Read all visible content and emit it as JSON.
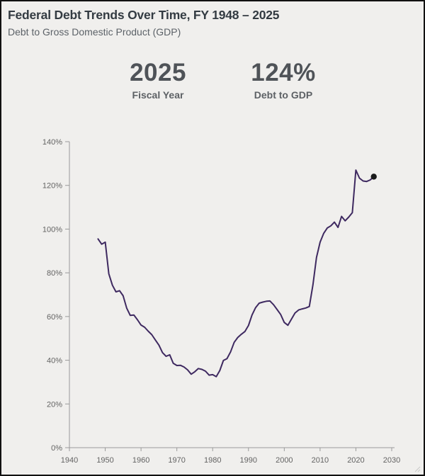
{
  "window": {
    "background_color": "#f0efed",
    "border_color": "#111111"
  },
  "header": {
    "title": "Federal Debt Trends Over Time, FY 1948 – 2025",
    "subtitle": "Debt to Gross Domestic Product (GDP)"
  },
  "stats": {
    "fiscal_year": {
      "value": "2025",
      "label": "Fiscal Year"
    },
    "debt_to_gdp": {
      "value": "124%",
      "label": "Debt to GDP"
    }
  },
  "chart_data": {
    "type": "line",
    "title": "",
    "xlabel": "",
    "ylabel": "",
    "xlim": [
      1940,
      2030
    ],
    "ylim_percent": [
      0,
      140
    ],
    "x_ticks": [
      1940,
      1950,
      1960,
      1970,
      1980,
      1990,
      2000,
      2010,
      2020,
      2030
    ],
    "y_ticks_percent": [
      0,
      20,
      40,
      60,
      80,
      100,
      120,
      140
    ],
    "y_tick_suffix": "%",
    "grid": false,
    "legend": "none",
    "line_color": "#3e2960",
    "axis_color": "#9a9a9a",
    "tick_label_color": "#636363",
    "end_marker": {
      "year": 2025,
      "value_percent": 124,
      "color": "#1a1a1a"
    },
    "series": [
      {
        "name": "Debt to GDP",
        "years": [
          1948,
          1949,
          1950,
          1951,
          1952,
          1953,
          1954,
          1955,
          1956,
          1957,
          1958,
          1959,
          1960,
          1961,
          1962,
          1963,
          1964,
          1965,
          1966,
          1967,
          1968,
          1969,
          1970,
          1971,
          1972,
          1973,
          1974,
          1975,
          1976,
          1977,
          1978,
          1979,
          1980,
          1981,
          1982,
          1983,
          1984,
          1985,
          1986,
          1987,
          1988,
          1989,
          1990,
          1991,
          1992,
          1993,
          1994,
          1995,
          1996,
          1997,
          1998,
          1999,
          2000,
          2001,
          2002,
          2003,
          2004,
          2005,
          2006,
          2007,
          2008,
          2009,
          2010,
          2011,
          2012,
          2013,
          2014,
          2015,
          2016,
          2017,
          2018,
          2019,
          2020,
          2021,
          2022,
          2023,
          2024,
          2025
        ],
        "values_percent": [
          95.5,
          93.1,
          94.0,
          79.6,
          74.3,
          71.3,
          71.8,
          69.5,
          63.8,
          60.5,
          60.7,
          58.5,
          56.1,
          55.1,
          53.3,
          51.7,
          49.3,
          46.9,
          43.5,
          41.8,
          42.5,
          38.6,
          37.6,
          37.7,
          36.9,
          35.6,
          33.6,
          34.7,
          36.2,
          35.8,
          35.0,
          33.2,
          33.4,
          32.5,
          35.3,
          39.9,
          40.7,
          43.8,
          48.2,
          50.4,
          51.9,
          53.1,
          55.9,
          60.7,
          64.1,
          66.1,
          66.6,
          67.0,
          67.1,
          65.4,
          63.2,
          60.9,
          57.3,
          56.0,
          58.8,
          61.6,
          63.0,
          63.5,
          63.9,
          64.6,
          74.5,
          87.0,
          94.0,
          98.0,
          100.5,
          101.5,
          103.2,
          100.8,
          105.8,
          103.8,
          105.5,
          107.5,
          127.0,
          123.3,
          122.0,
          121.8,
          122.5,
          124.0
        ]
      }
    ]
  }
}
